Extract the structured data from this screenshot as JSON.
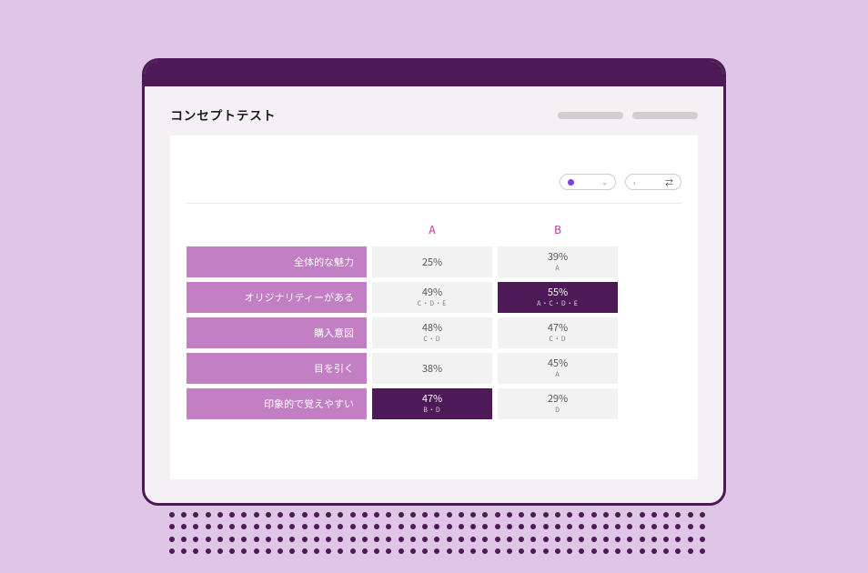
{
  "page": {
    "title": "コンセプトテスト",
    "background_color": "#dfc5e6",
    "tablet_border_color": "#4d1a57",
    "titlebar_color": "#4d1a57"
  },
  "table": {
    "columns": [
      "A",
      "B"
    ],
    "column_header_color": "#c94fb5",
    "row_label_bg": "#c27fc3",
    "row_label_fg": "#ffffff",
    "cell_bg": "#f2f2f2",
    "cell_fg": "#555555",
    "highlight_bg": "#4d1a57",
    "highlight_fg": "#ffffff",
    "rows": [
      {
        "label": "全体的な魅力",
        "cells": [
          {
            "value": "25%",
            "sub": "",
            "highlight": false
          },
          {
            "value": "39%",
            "sub": "A",
            "highlight": false
          }
        ]
      },
      {
        "label": "オリジナリティーがある",
        "cells": [
          {
            "value": "49%",
            "sub": "C・D・E",
            "highlight": false
          },
          {
            "value": "55%",
            "sub": "A・C・D・E",
            "highlight": true
          }
        ]
      },
      {
        "label": "購入意図",
        "cells": [
          {
            "value": "48%",
            "sub": "C・D",
            "highlight": false
          },
          {
            "value": "47%",
            "sub": "C・D",
            "highlight": false
          }
        ]
      },
      {
        "label": "目を引く",
        "cells": [
          {
            "value": "38%",
            "sub": "",
            "highlight": false
          },
          {
            "value": "45%",
            "sub": "A",
            "highlight": false
          }
        ]
      },
      {
        "label": "印象的で覚えやすい",
        "cells": [
          {
            "value": "47%",
            "sub": "B・D",
            "highlight": true
          },
          {
            "value": "29%",
            "sub": "D",
            "highlight": false
          }
        ]
      }
    ]
  },
  "dots": {
    "color": "#4d1a57",
    "rows": 5,
    "cols": 45
  }
}
